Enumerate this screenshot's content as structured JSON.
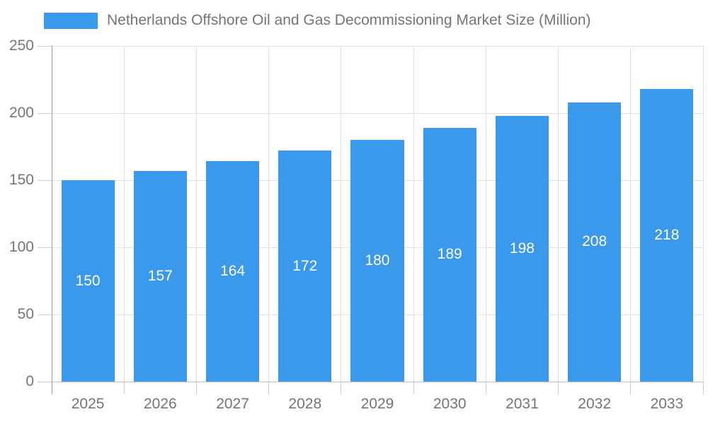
{
  "legend": {
    "position": "top-left"
  },
  "chart_data": {
    "type": "bar",
    "title": "Netherlands Offshore Oil and Gas Decommissioning Market Size (Million)",
    "categories": [
      "2025",
      "2026",
      "2027",
      "2028",
      "2029",
      "2030",
      "2031",
      "2032",
      "2033"
    ],
    "values": [
      150,
      157,
      164,
      172,
      180,
      189,
      198,
      208,
      218
    ],
    "xlabel": "",
    "ylabel": "",
    "ylim": [
      0,
      250
    ],
    "yticks": [
      0,
      50,
      100,
      150,
      200,
      250
    ],
    "grid": true,
    "legend_position": "top-left",
    "value_labels": "inside-center",
    "colors": {
      "bar": "#3B99EC",
      "value_label": "#FFFFFF",
      "axis_text": "#757575",
      "gridline": "#E0E0E0",
      "baseline": "#BFBFBF",
      "axis_line": "#999999",
      "tick": "#CCCCCC",
      "background": "#FFFFFF"
    }
  }
}
